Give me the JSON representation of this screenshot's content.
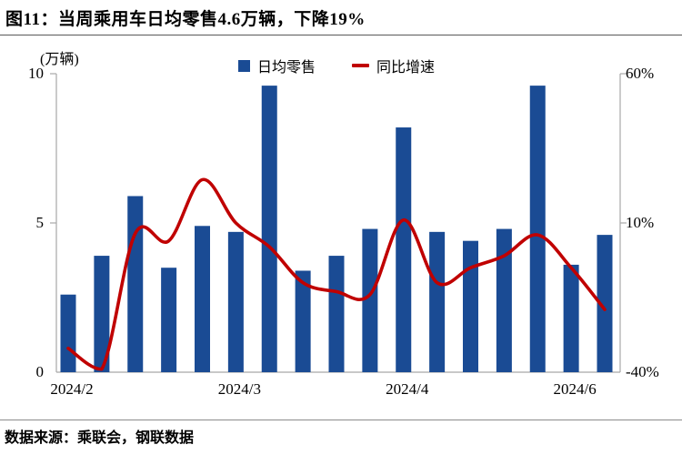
{
  "title": "图11：当周乘用车日均零售4.6万辆，下降19%",
  "footer": {
    "source": "数据来源：乘联会，钢联数据"
  },
  "chart_data": {
    "type": "bar",
    "subtype": "bar-line-combo",
    "unit_label": "(万辆)",
    "legend_position": "top-center",
    "series": [
      {
        "name": "日均零售",
        "type": "bar",
        "axis": "left",
        "color": "#1A4B94",
        "values": [
          2.6,
          3.9,
          5.9,
          3.5,
          4.9,
          4.7,
          9.6,
          3.4,
          3.9,
          4.8,
          8.2,
          4.7,
          4.4,
          4.8,
          9.6,
          3.6,
          4.6
        ]
      },
      {
        "name": "同比增速",
        "type": "line",
        "axis": "right",
        "color": "#C00000",
        "values": [
          -32,
          -39,
          6.5,
          4,
          24.5,
          10,
          2,
          -10,
          -13,
          -14,
          11,
          -10,
          -5,
          -1,
          6,
          -5,
          -19
        ]
      }
    ],
    "left_axis": {
      "range": [
        0,
        10
      ],
      "ticks": [
        {
          "value": 0,
          "label": "0"
        },
        {
          "value": 5,
          "label": "5"
        },
        {
          "value": 10,
          "label": "10"
        }
      ]
    },
    "right_axis": {
      "range": [
        -40,
        60
      ],
      "ticks": [
        {
          "value": -40,
          "label": "-40%"
        },
        {
          "value": 10,
          "label": "10%"
        },
        {
          "value": 60,
          "label": "60%"
        }
      ]
    },
    "x_axis": {
      "ticks": [
        {
          "index": 0,
          "label": "2024/2"
        },
        {
          "index": 5,
          "label": "2024/3"
        },
        {
          "index": 10,
          "label": "2024/4"
        },
        {
          "index": 15,
          "label": "2024/6"
        }
      ]
    }
  }
}
